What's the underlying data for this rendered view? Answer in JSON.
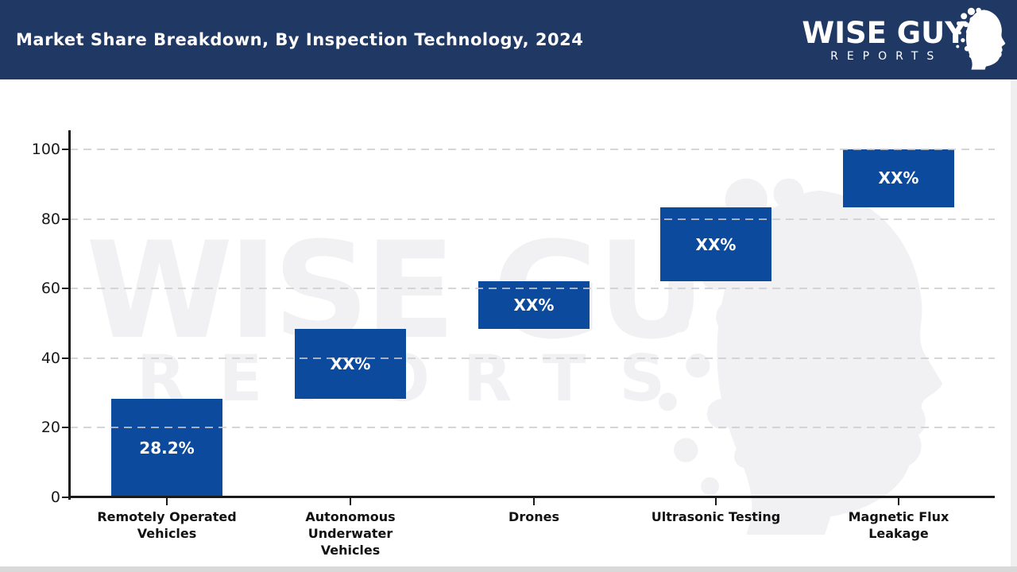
{
  "header": {
    "title": "Market Share Breakdown, By Inspection Technology, 2024",
    "logo": {
      "name": "WISE GUY",
      "subtitle": "REPORTS"
    }
  },
  "colors": {
    "header_bg": "#203864",
    "bar": "#0c4a9e",
    "grid": "#cccccc",
    "axis_text": "#1a1a1a",
    "bar_label": "#ffffff",
    "watermark": "#f1f1f4"
  },
  "chart_data": {
    "type": "bar",
    "subtype": "floating-waterfall-bars",
    "title": "Market Share Breakdown, By Inspection Technology, 2024",
    "categories": [
      "Remotely Operated Vehicles",
      "Autonomous Underwater Vehicles",
      "Drones",
      "Ultrasonic Testing",
      "Magnetic Flux Leakage"
    ],
    "xtick_display_lines": [
      "Remotely Operated\nVehicles",
      "Autonomous\nUnderwater\nVehicles",
      "Drones",
      "Ultrasonic Testing",
      "Magnetic Flux\nLeakage"
    ],
    "segments": [
      {
        "category": "Remotely Operated Vehicles",
        "start": 0,
        "end": 28.2,
        "label": "28.2%"
      },
      {
        "category": "Autonomous Underwater Vehicles",
        "start": 28.2,
        "end": 48.5,
        "label": "XX%"
      },
      {
        "category": "Drones",
        "start": 48.5,
        "end": 62.0,
        "label": "XX%"
      },
      {
        "category": "Ultrasonic Testing",
        "start": 62.0,
        "end": 83.4,
        "label": "XX%"
      },
      {
        "category": "Magnetic Flux Leakage",
        "start": 83.4,
        "end": 100.0,
        "label": "XX%"
      }
    ],
    "xlabel": "",
    "ylabel": "",
    "ylim": [
      0,
      100
    ],
    "yticks": [
      0,
      20,
      40,
      60,
      80,
      100
    ],
    "grid": "horizontal-dashed",
    "legend": false,
    "watermark": {
      "line1": "WISE GUY",
      "line2": "REPORTS"
    }
  }
}
